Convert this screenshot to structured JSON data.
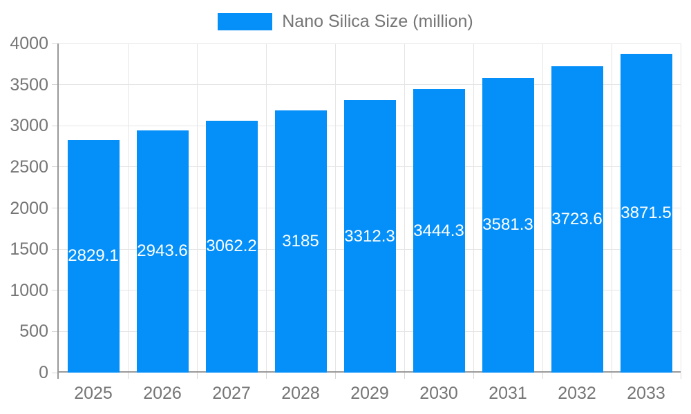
{
  "chart_data": {
    "type": "bar",
    "title": "",
    "legend": "Nano Silica Size (million)",
    "legend_position": "top",
    "xlabel": "",
    "ylabel": "",
    "categories": [
      "2025",
      "2026",
      "2027",
      "2028",
      "2029",
      "2030",
      "2031",
      "2032",
      "2033"
    ],
    "values": [
      2829.1,
      2943.6,
      3062.2,
      3185,
      3312.3,
      3444.3,
      3581.3,
      3723.6,
      3871.5
    ],
    "value_labels": [
      "2829.1",
      "2943.6",
      "3062.2",
      "3185",
      "3312.3",
      "3444.3",
      "3581.3",
      "3723.6",
      "3871.5"
    ],
    "ylim": [
      0,
      4000
    ],
    "y_ticks": [
      0,
      500,
      1000,
      1500,
      2000,
      2500,
      3000,
      3500,
      4000
    ],
    "grid": true,
    "colors": {
      "bar": "#0590f9",
      "grid": "#e5e5e5",
      "tick": "#d6d6d6",
      "axis": "#999999",
      "text": "#757575",
      "bar_label": "#ffffff",
      "background": "#ffffff"
    }
  }
}
